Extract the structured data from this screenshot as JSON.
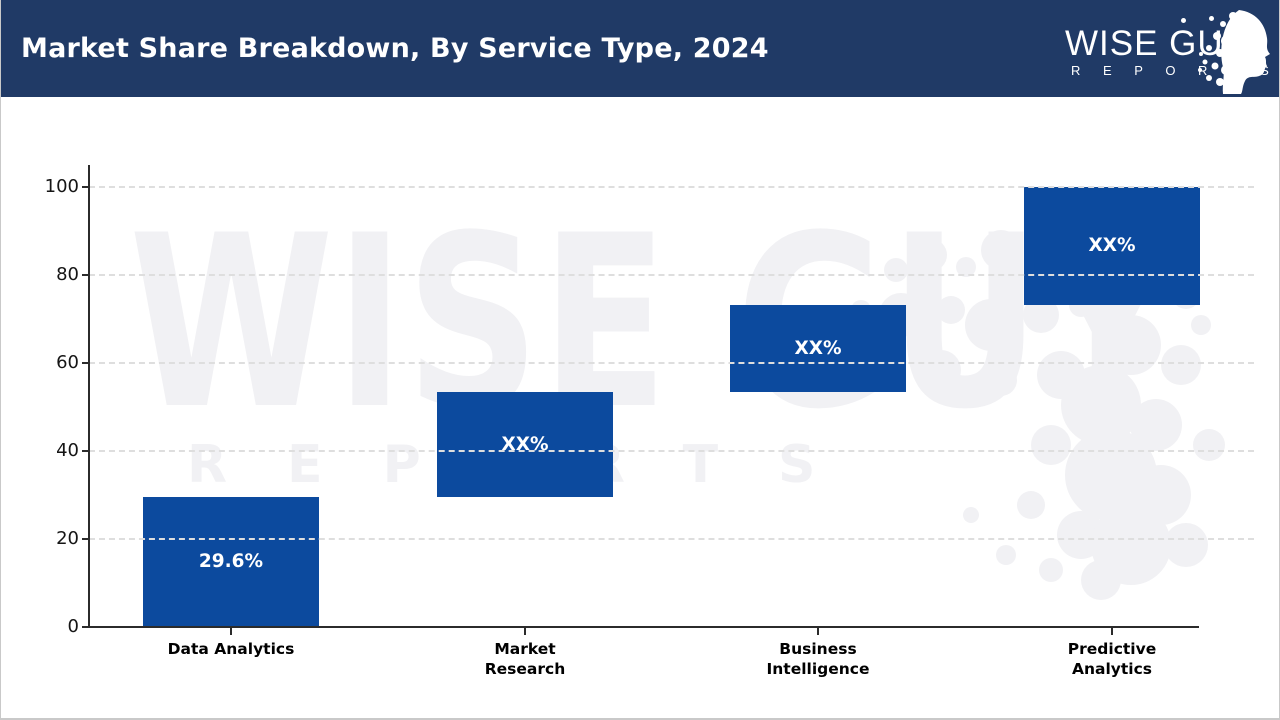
{
  "header": {
    "title": "Market Share Breakdown, By Service Type, 2024",
    "logo": {
      "wordmark": "WISE GUY",
      "subtext": "R E P O R T S"
    }
  },
  "watermark": {
    "wordmark": "WISE GUY",
    "subtext": "REPORTS"
  },
  "colors": {
    "header_bg": "#203a66",
    "bar_blue": "#0c4a9e",
    "watermark_gray": "#f1f1f4",
    "gridline_gray": "#dedede",
    "axis_dark": "#2b2b2b"
  },
  "chart_data": {
    "type": "bar",
    "subtype": "waterfall",
    "title": "Market Share Breakdown, By Service Type, 2024",
    "categories": [
      "Data Analytics",
      "Market Research",
      "Business Intelligence",
      "Predictive Analytics"
    ],
    "segments": [
      {
        "category": "Data Analytics",
        "start": 0,
        "end": 29.6,
        "label": "29.6%"
      },
      {
        "category": "Market Research",
        "start": 29.6,
        "end": 53.4,
        "label": "XX%"
      },
      {
        "category": "Business Intelligence",
        "start": 53.4,
        "end": 73.2,
        "label": "XX%"
      },
      {
        "category": "Predictive Analytics",
        "start": 73.2,
        "end": 100,
        "label": "XX%"
      }
    ],
    "ylim": [
      0,
      100
    ],
    "yticks": [
      0,
      20,
      40,
      60,
      80,
      100
    ],
    "xlabel": "",
    "ylabel": "",
    "grid": "horizontal-dashed",
    "legend": "none",
    "bar_color": "#0c4a9e",
    "value_label_color": "#ffffff"
  }
}
